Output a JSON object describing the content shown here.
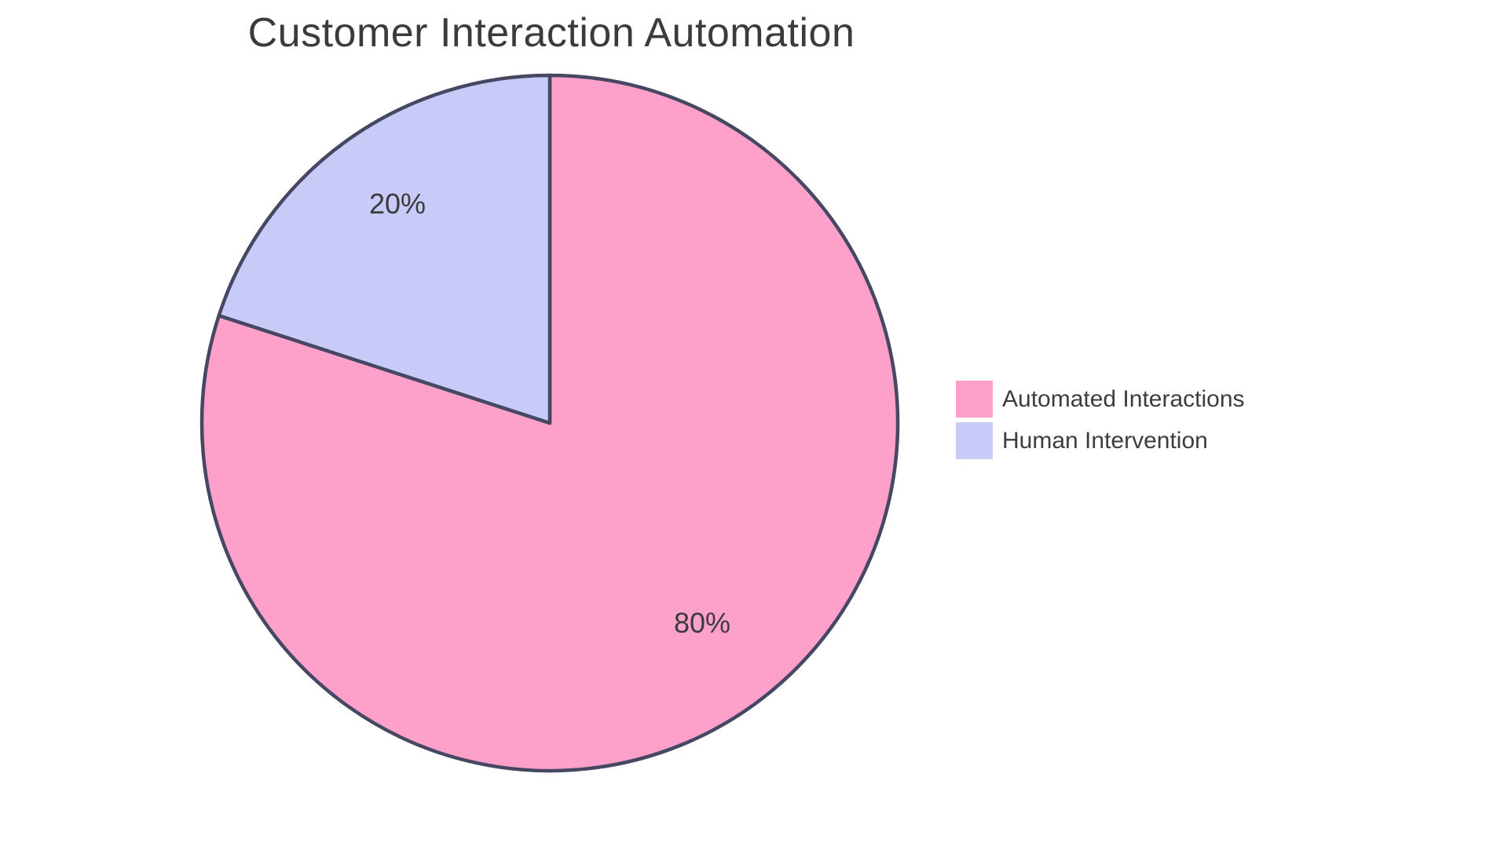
{
  "page": {
    "background_color": "#ffffff"
  },
  "chart_data": {
    "type": "pie",
    "title": "Customer Interaction Automation",
    "categories": [
      "Automated Interactions",
      "Human Intervention"
    ],
    "values": [
      80,
      20
    ],
    "slices": [
      {
        "label": "Automated Interactions",
        "value": 80,
        "display": "80%",
        "color": "#FDA1CB"
      },
      {
        "label": "Human Intervention",
        "value": 20,
        "display": "20%",
        "color": "#C8CAF8"
      }
    ],
    "total": 100,
    "start_angle_deg": 0,
    "direction": "clockwise",
    "stroke_color": "#464863",
    "slice_label_color": "#3b3b3b",
    "legend": {
      "position": "right",
      "entries": [
        "Automated Interactions",
        "Human Intervention"
      ]
    }
  }
}
